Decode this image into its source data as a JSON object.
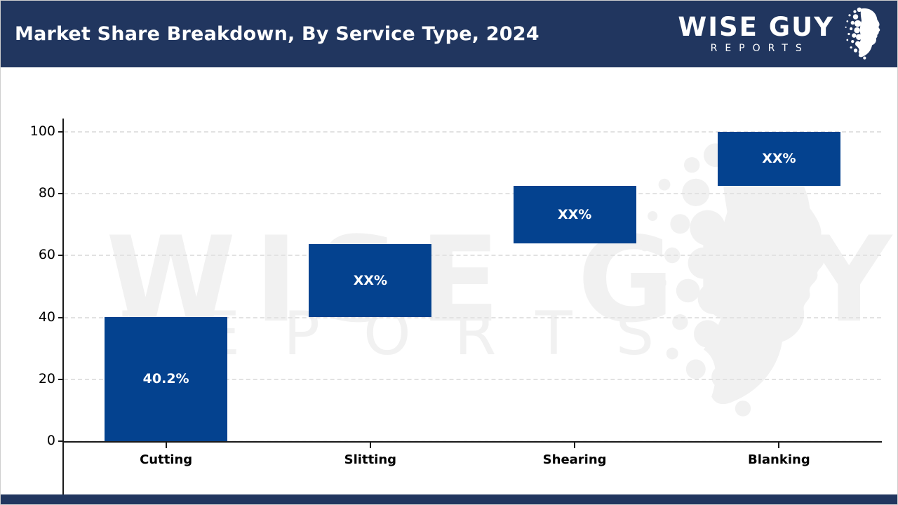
{
  "header": {
    "title": "Market Share Breakdown, By Service Type, 2024",
    "logo": {
      "line1": "WISE GUY",
      "line2": "REPORTS"
    }
  },
  "watermark": {
    "line1": "WISE GUY",
    "line2": "REPORTS"
  },
  "colors": {
    "header_bg": "#21365f",
    "bar": "#04428f",
    "grid": "#e2e2e2",
    "watermark": "#f1f1f1",
    "axis": "#1a1a1a",
    "bar_label": "#ffffff",
    "title_text": "#ffffff"
  },
  "chart_data": {
    "type": "bar",
    "subtype": "waterfall",
    "title": "Market Share Breakdown, By Service Type, 2024",
    "categories": [
      "Cutting",
      "Slitting",
      "Shearing",
      "Blanking"
    ],
    "series": [
      {
        "name": "Market Share (%)",
        "segments": [
          {
            "category": "Cutting",
            "base": 0,
            "top": 40.2,
            "label": "40.2%"
          },
          {
            "category": "Slitting",
            "base": 40.2,
            "top": 63.8,
            "label": "XX%"
          },
          {
            "category": "Shearing",
            "base": 64,
            "top": 82.6,
            "label": "XX%"
          },
          {
            "category": "Blanking",
            "base": 82.6,
            "top": 100,
            "label": "XX%"
          }
        ]
      }
    ],
    "xlabel": "",
    "ylabel": "",
    "yticks": [
      0,
      20,
      40,
      60,
      80,
      100
    ],
    "ylim": [
      0,
      104
    ],
    "grid": "horizontal-dashed",
    "legend": "none"
  }
}
